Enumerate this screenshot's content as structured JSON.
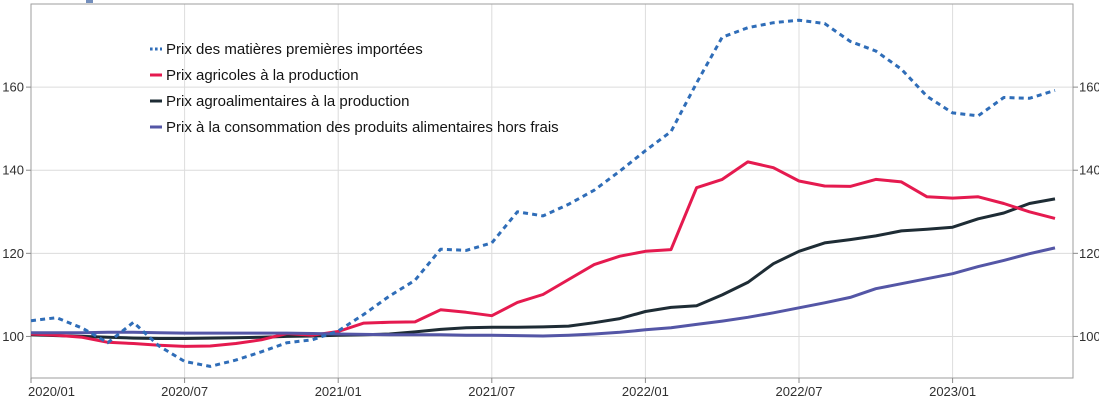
{
  "colors": {
    "background": "#ffffff",
    "plot_border": "#9e9e9e",
    "gridline": "#dcdcdc",
    "tick_mark": "#8a8a8a",
    "tick_text": "#303030",
    "legend_text": "#141414"
  },
  "chart_data": {
    "type": "line",
    "title": "",
    "grid": true,
    "legend_position": "top-left-inside",
    "ylim": [
      90,
      180
    ],
    "y_ticks": [
      100,
      120,
      140,
      160
    ],
    "y_axis_sides": [
      "left",
      "right"
    ],
    "x_tick_labels": [
      "2020/01",
      "2020/07",
      "2021/01",
      "2021/07",
      "2022/01",
      "2022/07",
      "2023/01"
    ],
    "x_tick_month_indices": [
      0,
      6,
      12,
      18,
      24,
      30,
      36
    ],
    "x_labels": [
      "2020/01",
      "2020/02",
      "2020/03",
      "2020/04",
      "2020/05",
      "2020/06",
      "2020/07",
      "2020/08",
      "2020/09",
      "2020/10",
      "2020/11",
      "2020/12",
      "2021/01",
      "2021/02",
      "2021/03",
      "2021/04",
      "2021/05",
      "2021/06",
      "2021/07",
      "2021/08",
      "2021/09",
      "2021/10",
      "2021/11",
      "2021/12",
      "2022/01",
      "2022/02",
      "2022/03",
      "2022/04",
      "2022/05",
      "2022/06",
      "2022/07",
      "2022/08",
      "2022/09",
      "2022/10",
      "2022/11",
      "2022/12",
      "2023/01",
      "2023/02",
      "2023/03",
      "2023/04",
      "2023/05"
    ],
    "series": [
      {
        "name": "Prix des matières premières importées",
        "slug": "matieres-premieres-importees",
        "color": "#2f6db8",
        "style": "dotted",
        "values": [
          103.8,
          104.5,
          102.0,
          98.5,
          103.4,
          97.7,
          94.0,
          92.8,
          94.3,
          96.3,
          98.5,
          99.2,
          101.3,
          105.3,
          109.7,
          113.5,
          121.0,
          120.7,
          122.5,
          130.0,
          129.0,
          131.8,
          135.2,
          139.8,
          144.7,
          149.3,
          161.0,
          172.0,
          174.3,
          175.5,
          176.1,
          175.3,
          171.0,
          168.7,
          164.3,
          157.8,
          153.8,
          153.1,
          157.5,
          157.3,
          159.2
        ]
      },
      {
        "name": "Prix agricoles à la production",
        "slug": "agricoles-production",
        "color": "#e51a4f",
        "style": "solid",
        "values": [
          100.6,
          100.3,
          99.8,
          98.6,
          98.3,
          97.9,
          97.6,
          97.7,
          98.3,
          99.2,
          100.7,
          100.3,
          101.2,
          103.2,
          103.4,
          103.5,
          106.4,
          105.8,
          105.0,
          108.2,
          110.1,
          113.7,
          117.3,
          119.3,
          120.5,
          120.9,
          135.8,
          137.8,
          142.0,
          140.6,
          137.4,
          136.2,
          136.1,
          137.8,
          137.2,
          133.6,
          133.3,
          133.6,
          132.0,
          130.0,
          128.4
        ]
      },
      {
        "name": "Prix agroalimentaires à la production",
        "slug": "agroalimentaires-production",
        "color": "#1e2c35",
        "style": "solid",
        "values": [
          100.4,
          100.2,
          100.0,
          99.8,
          99.6,
          99.5,
          99.5,
          99.6,
          99.7,
          99.8,
          100.0,
          100.1,
          100.3,
          100.4,
          100.6,
          101.1,
          101.7,
          102.1,
          102.2,
          102.2,
          102.3,
          102.5,
          103.3,
          104.3,
          106.0,
          107.0,
          107.4,
          110.0,
          113.0,
          117.5,
          120.5,
          122.5,
          123.3,
          124.2,
          125.4,
          125.8,
          126.3,
          128.3,
          129.7,
          132.0,
          133.1
        ]
      },
      {
        "name": "Prix à la consommation des produits alimentaires hors  frais",
        "slug": "consommation-alimentaires-hors-frais",
        "color": "#5456a6",
        "style": "solid",
        "values": [
          100.9,
          100.9,
          100.9,
          101.0,
          101.0,
          100.9,
          100.8,
          100.8,
          100.8,
          100.8,
          100.8,
          100.7,
          100.6,
          100.5,
          100.4,
          100.4,
          100.4,
          100.3,
          100.3,
          100.2,
          100.1,
          100.3,
          100.6,
          101.0,
          101.6,
          102.1,
          102.9,
          103.7,
          104.6,
          105.7,
          106.9,
          108.1,
          109.4,
          111.5,
          112.7,
          113.9,
          115.1,
          116.8,
          118.3,
          119.9,
          121.3
        ]
      }
    ]
  }
}
